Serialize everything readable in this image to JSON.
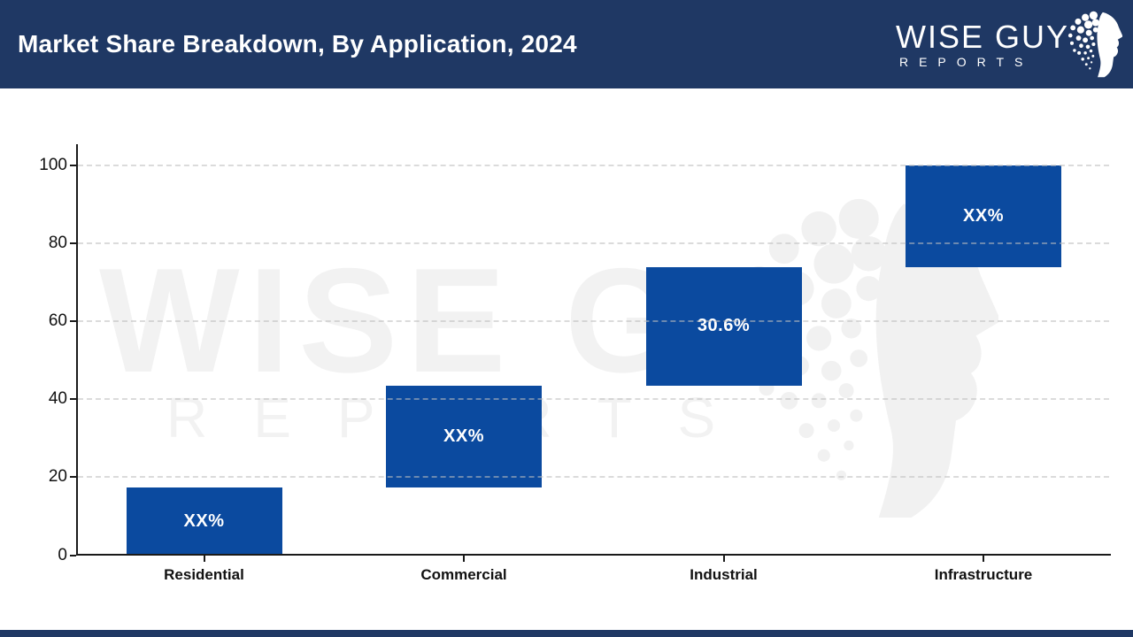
{
  "header": {
    "title": "Market Share Breakdown, By Application, 2024",
    "logo": {
      "line1": "WISE GUY",
      "line2": "REPORTS"
    },
    "bg_color": "#1f3864"
  },
  "watermark": {
    "line1": "WISE GU",
    "line2": "REPORTS"
  },
  "chart_data": {
    "type": "bar",
    "subtype": "waterfall-floating-bars",
    "title": "Market Share Breakdown, By Application, 2024",
    "categories": [
      "Residential",
      "Commercial",
      "Industrial",
      "Infrastructure"
    ],
    "bars": [
      {
        "category": "Residential",
        "start": 0,
        "end": 17.3,
        "value": 17.3,
        "label": "XX%"
      },
      {
        "category": "Commercial",
        "start": 17.3,
        "end": 43.4,
        "value": 26.1,
        "label": "XX%"
      },
      {
        "category": "Industrial",
        "start": 43.4,
        "end": 74,
        "value": 30.6,
        "label": "30.6%"
      },
      {
        "category": "Infrastructure",
        "start": 74,
        "end": 100,
        "value": 26,
        "label": "XX%"
      }
    ],
    "xlabel": "",
    "ylabel": "",
    "ylim": [
      0,
      100
    ],
    "yticks": [
      0,
      20,
      40,
      60,
      80,
      100
    ],
    "grid": "horizontal-dashed-over-bars",
    "legend": "none",
    "bar_color": "#0b4a9f",
    "grid_color": "#dcdcdc",
    "axis_color": "#1a1a1a"
  }
}
